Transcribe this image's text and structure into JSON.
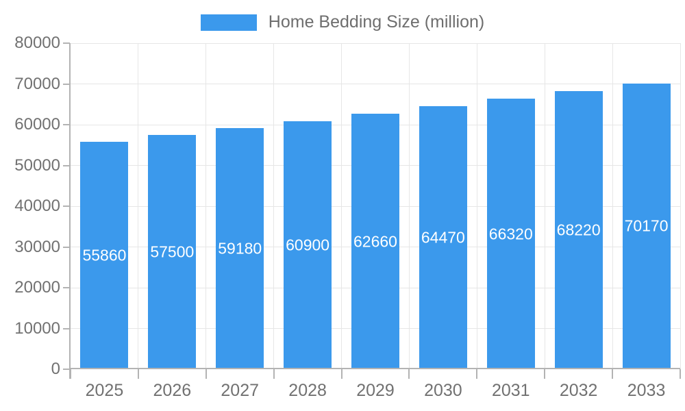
{
  "chart_data": {
    "type": "bar",
    "title": "Home Bedding Size (million)",
    "legend_position": "top",
    "categories": [
      "2025",
      "2026",
      "2027",
      "2028",
      "2029",
      "2030",
      "2031",
      "2032",
      "2033"
    ],
    "values": [
      55860,
      57500,
      59180,
      60900,
      62660,
      64470,
      66320,
      68220,
      70170
    ],
    "xlabel": "",
    "ylabel": "",
    "ylim": [
      0,
      80000
    ],
    "ytick_step": 10000,
    "yticks": [
      "0",
      "10000",
      "20000",
      "30000",
      "40000",
      "50000",
      "60000",
      "70000",
      "80000"
    ],
    "grid": true,
    "bar_color": "#3b99ec",
    "bar_label_color": "#ffffff",
    "grid_color": "#e6e6e6",
    "axis_color": "#b3b3b3",
    "text_color": "#717171",
    "legend_text_color": "#6e6e6e"
  }
}
